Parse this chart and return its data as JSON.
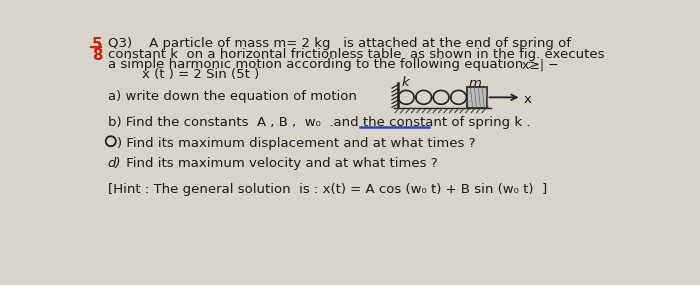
{
  "bg_color": "#d8d4cc",
  "text_color": "#1a1a1a",
  "red_color": "#cc2200",
  "underline_color": "#3344bb",
  "title": "Q3)    A particle of mass m= 2 kg   is attached at the end of spring of",
  "line2": "constant k  on a horizontal frictionless table  as shown in the fig. executes",
  "line3": "a simple harmonic motion according to the following equation :",
  "line4": "        x (t ) = 2 Sin (5t )",
  "part_a": "a) write down the equation of motion",
  "part_b": "b) Find the constants  A , B ,  w₀  .and the constant of spring k .",
  "part_c": ") Find its maximum displacement and at what times ?",
  "part_d": ") Find its maximum velocity and at what times ?",
  "hint": "[Hint : The general solution  is : x(t) = A cos (w₀ t) + B sin (w₀ t)  ]",
  "fraction_num": "5",
  "fraction_den": "8",
  "note_right": "x≥| −",
  "spring_label_k": "k",
  "spring_label_m": "m",
  "spring_arrow_label": "x"
}
